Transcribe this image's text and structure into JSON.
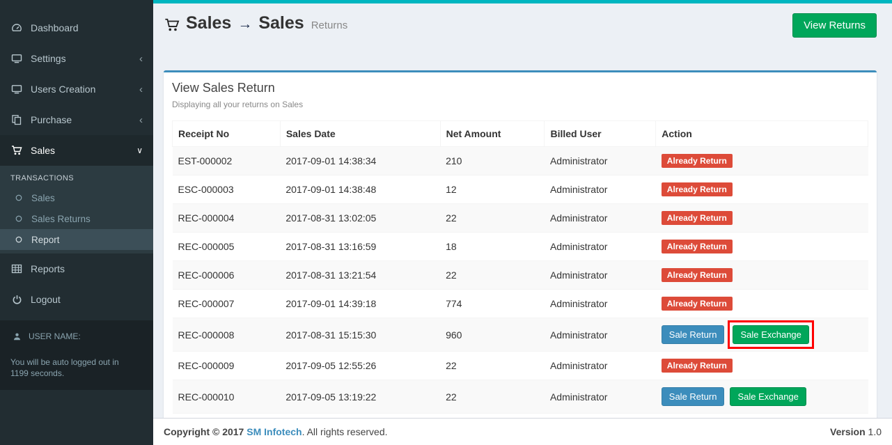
{
  "colors": {
    "topbar": "#00b6c0",
    "accent_blue": "#3c8dbc",
    "success_green": "#00a65a",
    "danger_red": "#dd4b39",
    "annotation_red": "#ff0000",
    "sidebar_bg": "#222d32",
    "sidebar_active_bg": "#1e282c",
    "submenu_bg": "#2c3b41",
    "content_bg": "#ecf0f5"
  },
  "icons": {
    "chevron_left": "‹",
    "chevron_down": "∨",
    "breadcrumb_arrow": "→"
  },
  "sidebar": {
    "items": [
      {
        "label": "Dashboard"
      },
      {
        "label": "Settings"
      },
      {
        "label": "Users Creation"
      },
      {
        "label": "Purchase"
      },
      {
        "label": "Sales"
      }
    ],
    "section_header": "TRANSACTIONS",
    "submenu": [
      {
        "label": "Sales"
      },
      {
        "label": "Sales Returns"
      },
      {
        "label": "Report"
      }
    ],
    "reports_label": "Reports",
    "logout_label": "Logout",
    "user_label": "USER NAME:",
    "logout_notice": "You will be auto logged out in 1199 seconds."
  },
  "header": {
    "title_primary": "Sales",
    "title_secondary": "Sales",
    "title_suffix": "Returns",
    "action_button": "View Returns"
  },
  "card": {
    "title": "View Sales Return",
    "subtitle": "Displaying all your returns on Sales"
  },
  "table": {
    "columns": [
      "Receipt No",
      "Sales Date",
      "Net Amount",
      "Billed User",
      "Action"
    ],
    "action_labels": {
      "already_return": "Already Return",
      "sale_return": "Sale Return",
      "sale_exchange": "Sale Exchange"
    },
    "rows": [
      {
        "receipt_no": "EST-000002",
        "sales_date": "2017-09-01 14:38:34",
        "net_amount": "210",
        "billed_user": "Administrator",
        "actions": [
          {
            "key": "already_return"
          }
        ]
      },
      {
        "receipt_no": "ESC-000003",
        "sales_date": "2017-09-01 14:38:48",
        "net_amount": "12",
        "billed_user": "Administrator",
        "actions": [
          {
            "key": "already_return"
          }
        ]
      },
      {
        "receipt_no": "REC-000004",
        "sales_date": "2017-08-31 13:02:05",
        "net_amount": "22",
        "billed_user": "Administrator",
        "actions": [
          {
            "key": "already_return"
          }
        ]
      },
      {
        "receipt_no": "REC-000005",
        "sales_date": "2017-08-31 13:16:59",
        "net_amount": "18",
        "billed_user": "Administrator",
        "actions": [
          {
            "key": "already_return"
          }
        ]
      },
      {
        "receipt_no": "REC-000006",
        "sales_date": "2017-08-31 13:21:54",
        "net_amount": "22",
        "billed_user": "Administrator",
        "actions": [
          {
            "key": "already_return"
          }
        ]
      },
      {
        "receipt_no": "REC-000007",
        "sales_date": "2017-09-01 14:39:18",
        "net_amount": "774",
        "billed_user": "Administrator",
        "actions": [
          {
            "key": "already_return"
          }
        ]
      },
      {
        "receipt_no": "REC-000008",
        "sales_date": "2017-08-31 15:15:30",
        "net_amount": "960",
        "billed_user": "Administrator",
        "actions": [
          {
            "key": "sale_return"
          },
          {
            "key": "sale_exchange",
            "annotated": true
          }
        ]
      },
      {
        "receipt_no": "REC-000009",
        "sales_date": "2017-09-05 12:55:26",
        "net_amount": "22",
        "billed_user": "Administrator",
        "actions": [
          {
            "key": "already_return"
          }
        ]
      },
      {
        "receipt_no": "REC-000010",
        "sales_date": "2017-09-05 13:19:22",
        "net_amount": "22",
        "billed_user": "Administrator",
        "actions": [
          {
            "key": "sale_return"
          },
          {
            "key": "sale_exchange"
          }
        ]
      }
    ]
  },
  "footer": {
    "copyright_prefix": "Copyright © 2017 ",
    "company": "SM Infotech",
    "copyright_suffix": ". All rights reserved.",
    "version_label": "Version",
    "version_value": "1.0"
  }
}
